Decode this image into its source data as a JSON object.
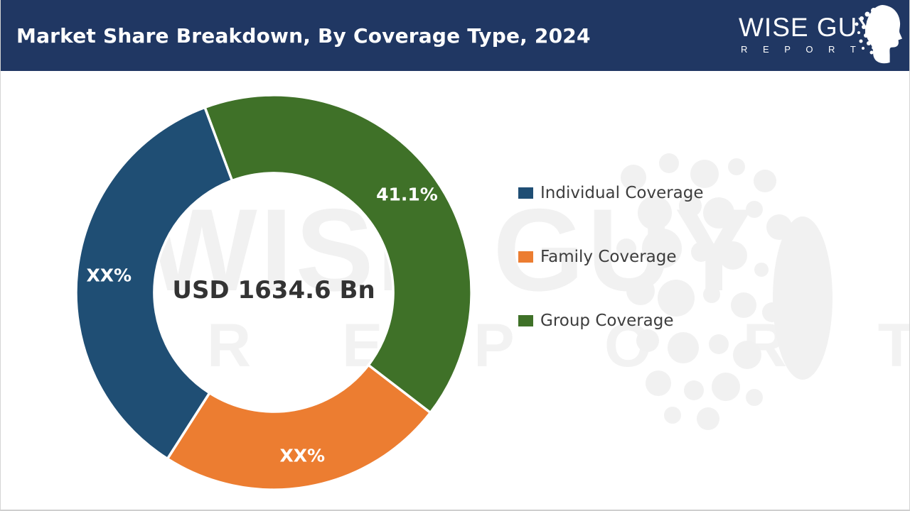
{
  "header": {
    "title": "Market Share Breakdown, By Coverage Type, 2024",
    "bg_color": "#203763",
    "logo": {
      "name": "WISE GUY",
      "sub": "R E P O R T S"
    }
  },
  "watermark": {
    "line1": "WISE GUY",
    "line2": "R E P O R T S"
  },
  "chart_data": {
    "type": "pie",
    "subtype": "donut",
    "title": "Market Share Breakdown, By Coverage Type, 2024",
    "center_label": "USD 1634.6 Bn",
    "categories": [
      "Individual Coverage",
      "Family Coverage",
      "Group Coverage"
    ],
    "values": [
      35.3,
      23.6,
      41.1
    ],
    "displayed_slice_labels": [
      "XX%",
      "XX%",
      "41.1%"
    ],
    "colors": [
      "#1F4E74",
      "#EC7D31",
      "#3F7128"
    ],
    "legend_position": "right",
    "start_angle_deg": -20.4,
    "draw_order": [
      2,
      1,
      0
    ],
    "outer_radius": 278,
    "inner_radius": 168
  },
  "legend": {
    "items": [
      {
        "label": "Individual Coverage",
        "color": "#1F4E74"
      },
      {
        "label": "Family Coverage",
        "color": "#EC7D31"
      },
      {
        "label": "Group Coverage",
        "color": "#3F7128"
      }
    ]
  },
  "colors": {
    "header_bg": "#203763",
    "center_text": "#333333",
    "legend_text": "#3d3d3d",
    "watermark": "#f1f1f1",
    "slice_label_text": "#ffffff"
  }
}
